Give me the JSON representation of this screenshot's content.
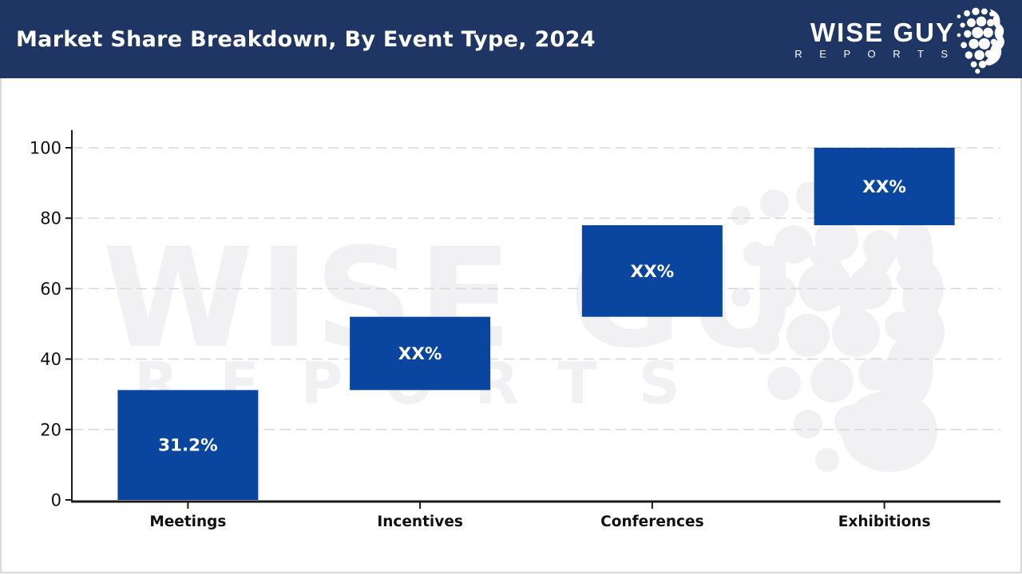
{
  "header": {
    "title": "Market Share Breakdown, By Event Type, 2024",
    "bg_color": "#1f3563",
    "logo": {
      "line1": "WISE GUY",
      "line2": "R E P O R T S"
    }
  },
  "watermark": {
    "line1": "WISE GUY",
    "line2": "REPORTS"
  },
  "chart_data": {
    "type": "bar",
    "subtype": "waterfall",
    "title": "Market Share Breakdown, By Event Type, 2024",
    "categories": [
      "Meetings",
      "Incentives",
      "Conferences",
      "Exhibitions"
    ],
    "segments": [
      {
        "category": "Meetings",
        "start": 0,
        "end": 31.2,
        "label": "31.2%"
      },
      {
        "category": "Incentives",
        "start": 31.2,
        "end": 52,
        "label": "XX%"
      },
      {
        "category": "Conferences",
        "start": 52,
        "end": 78,
        "label": "XX%"
      },
      {
        "category": "Exhibitions",
        "start": 78,
        "end": 100,
        "label": "XX%"
      }
    ],
    "xlabel": "",
    "ylabel": "",
    "ylim": [
      0,
      100
    ],
    "yticks": [
      0,
      20,
      40,
      60,
      80,
      100
    ],
    "legend": "none",
    "grid": "horizontal-dashed",
    "bar_color": "#0a46a0",
    "bar_label_color": "#ffffff",
    "axis_color": "#1a1a1a",
    "grid_color": "#d9d9d9"
  }
}
